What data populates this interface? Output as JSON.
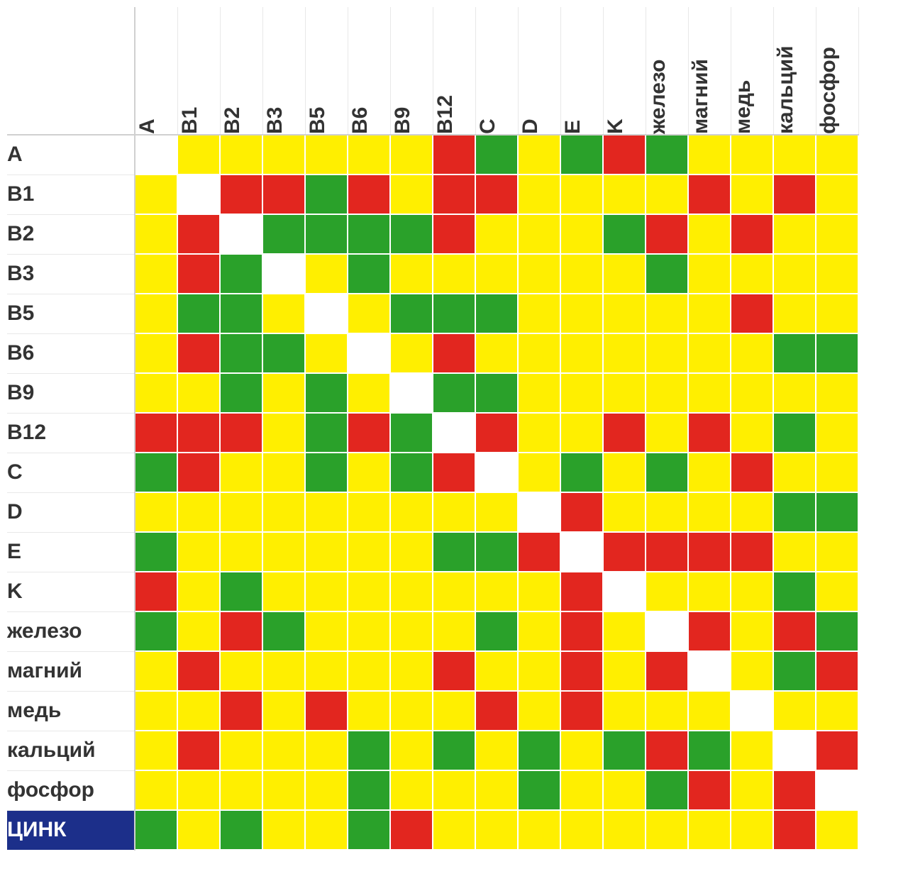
{
  "chart": {
    "type": "heatmap",
    "cell_size": {
      "width": 60,
      "height": 56
    },
    "font": {
      "label_size": 30,
      "label_weight": 700,
      "color": "#333333"
    },
    "grid_line_color": "#ffffff",
    "header_border_color": "#d0d0d0",
    "columns": [
      "A",
      "B1",
      "B2",
      "B3",
      "B5",
      "B6",
      "B9",
      "B12",
      "C",
      "D",
      "E",
      "K",
      "железо",
      "магний",
      "медь",
      "кальций",
      "фосфор"
    ],
    "rows": [
      "A",
      "B1",
      "B2",
      "B3",
      "B5",
      "B6",
      "B9",
      "B12",
      "C",
      "D",
      "E",
      "K",
      "железо",
      "магний",
      "медь",
      "кальций",
      "фосфор",
      "ЦИНК"
    ],
    "highlight_row_index": 17,
    "highlight_bg": "#1c2f8a",
    "highlight_fg": "#ffffff",
    "colors": {
      "w": "#ffffff",
      "y": "#ffef00",
      "g": "#2aa12a",
      "r": "#e2261f"
    },
    "cells": [
      [
        "w",
        "y",
        "y",
        "y",
        "y",
        "y",
        "y",
        "r",
        "g",
        "y",
        "g",
        "r",
        "g",
        "y",
        "y",
        "y",
        "y"
      ],
      [
        "y",
        "w",
        "r",
        "r",
        "g",
        "r",
        "y",
        "r",
        "r",
        "y",
        "y",
        "y",
        "y",
        "r",
        "y",
        "r",
        "y"
      ],
      [
        "y",
        "r",
        "w",
        "g",
        "g",
        "g",
        "g",
        "r",
        "y",
        "y",
        "y",
        "g",
        "r",
        "y",
        "r",
        "y",
        "y"
      ],
      [
        "y",
        "r",
        "g",
        "w",
        "y",
        "g",
        "y",
        "y",
        "y",
        "y",
        "y",
        "y",
        "g",
        "y",
        "y",
        "y",
        "y"
      ],
      [
        "y",
        "g",
        "g",
        "y",
        "w",
        "y",
        "g",
        "g",
        "g",
        "y",
        "y",
        "y",
        "y",
        "y",
        "r",
        "y",
        "y"
      ],
      [
        "y",
        "r",
        "g",
        "g",
        "y",
        "w",
        "y",
        "r",
        "y",
        "y",
        "y",
        "y",
        "y",
        "y",
        "y",
        "g",
        "g"
      ],
      [
        "y",
        "y",
        "g",
        "y",
        "g",
        "y",
        "w",
        "g",
        "g",
        "y",
        "y",
        "y",
        "y",
        "y",
        "y",
        "y",
        "y"
      ],
      [
        "r",
        "r",
        "r",
        "y",
        "g",
        "r",
        "g",
        "w",
        "r",
        "y",
        "y",
        "r",
        "y",
        "r",
        "y",
        "g",
        "y"
      ],
      [
        "g",
        "r",
        "y",
        "y",
        "g",
        "y",
        "g",
        "r",
        "w",
        "y",
        "g",
        "y",
        "g",
        "y",
        "r",
        "y",
        "y"
      ],
      [
        "y",
        "y",
        "y",
        "y",
        "y",
        "y",
        "y",
        "y",
        "y",
        "w",
        "r",
        "y",
        "y",
        "y",
        "y",
        "g",
        "g"
      ],
      [
        "g",
        "y",
        "y",
        "y",
        "y",
        "y",
        "y",
        "g",
        "g",
        "r",
        "w",
        "r",
        "r",
        "r",
        "r",
        "y",
        "y"
      ],
      [
        "r",
        "y",
        "g",
        "y",
        "y",
        "y",
        "y",
        "y",
        "y",
        "y",
        "r",
        "w",
        "y",
        "y",
        "y",
        "g",
        "y"
      ],
      [
        "g",
        "y",
        "r",
        "g",
        "y",
        "y",
        "y",
        "y",
        "g",
        "y",
        "r",
        "y",
        "w",
        "r",
        "y",
        "r",
        "g"
      ],
      [
        "y",
        "r",
        "y",
        "y",
        "y",
        "y",
        "y",
        "r",
        "y",
        "y",
        "r",
        "y",
        "r",
        "w",
        "y",
        "g",
        "r"
      ],
      [
        "y",
        "y",
        "r",
        "y",
        "r",
        "y",
        "y",
        "y",
        "r",
        "y",
        "r",
        "y",
        "y",
        "y",
        "w",
        "y",
        "y"
      ],
      [
        "y",
        "r",
        "y",
        "y",
        "y",
        "g",
        "y",
        "g",
        "y",
        "g",
        "y",
        "g",
        "r",
        "g",
        "y",
        "w",
        "r"
      ],
      [
        "y",
        "y",
        "y",
        "y",
        "y",
        "g",
        "y",
        "y",
        "y",
        "g",
        "y",
        "y",
        "g",
        "r",
        "y",
        "r",
        "w"
      ],
      [
        "g",
        "y",
        "g",
        "y",
        "y",
        "g",
        "r",
        "y",
        "y",
        "y",
        "y",
        "y",
        "y",
        "y",
        "y",
        "r",
        "y"
      ]
    ]
  }
}
